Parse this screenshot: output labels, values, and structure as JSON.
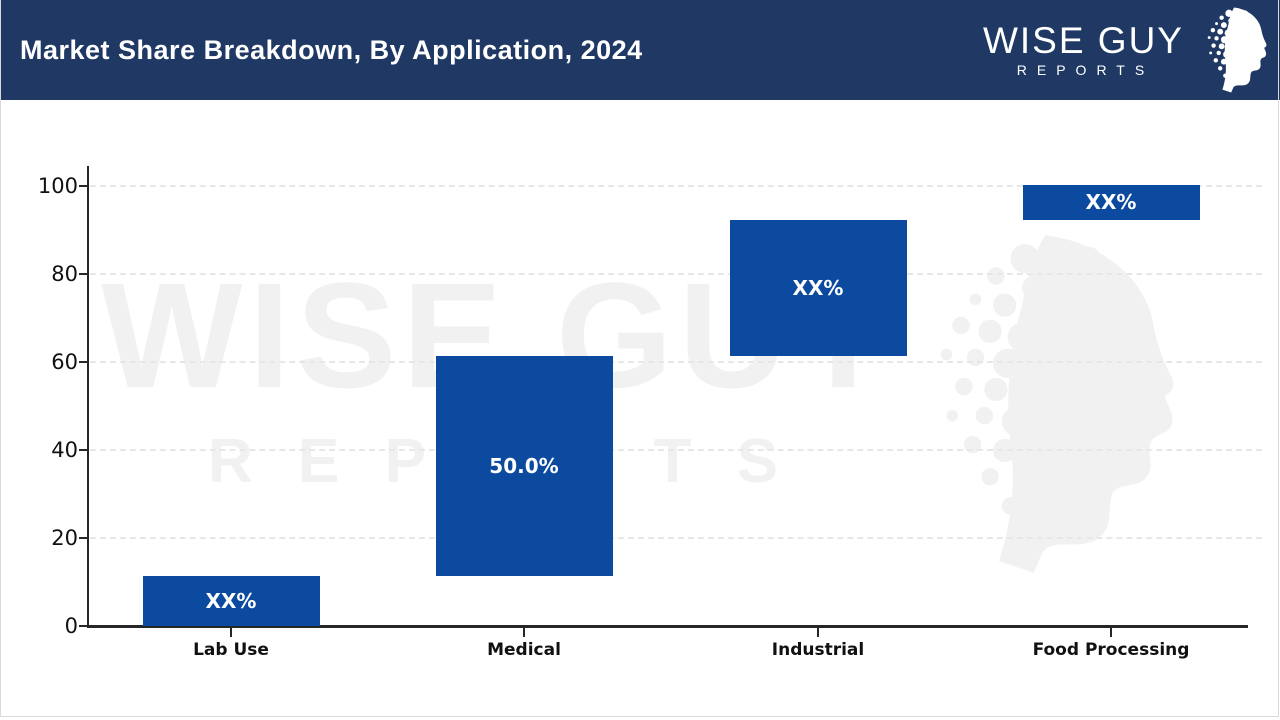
{
  "header": {
    "title": "Market Share Breakdown, By Application, 2024",
    "logo": {
      "line1": "WISE GUY",
      "line2": "REPORTS"
    }
  },
  "watermark": {
    "line1": "WISE GUY",
    "line2": "R E P O R T S"
  },
  "colors": {
    "header_bg": "#1F3864",
    "bar": "#0B4A9F",
    "grid": "#E7E7E7",
    "axis": "#262626",
    "watermark": "#F1F1F1"
  },
  "chart_data": {
    "type": "bar",
    "variant": "waterfall",
    "title": "Market Share Breakdown, By Application, 2024",
    "categories": [
      "Lab Use",
      "Medical",
      "Industrial",
      "Food Processing"
    ],
    "segments": [
      {
        "category": "Lab Use",
        "start": 0,
        "end": 11.4,
        "label": "XX%"
      },
      {
        "category": "Medical",
        "start": 11.4,
        "end": 61.4,
        "label": "50.0%"
      },
      {
        "category": "Industrial",
        "start": 61.4,
        "end": 92.3,
        "label": "XX%"
      },
      {
        "category": "Food Processing",
        "start": 92.3,
        "end": 100.2,
        "label": "XX%"
      }
    ],
    "xlabel": "",
    "ylabel": "",
    "ylim": [
      0,
      105
    ],
    "yticks": [
      0,
      20,
      40,
      60,
      80,
      100
    ],
    "grid": "horizontal-dashed",
    "legend": false
  }
}
